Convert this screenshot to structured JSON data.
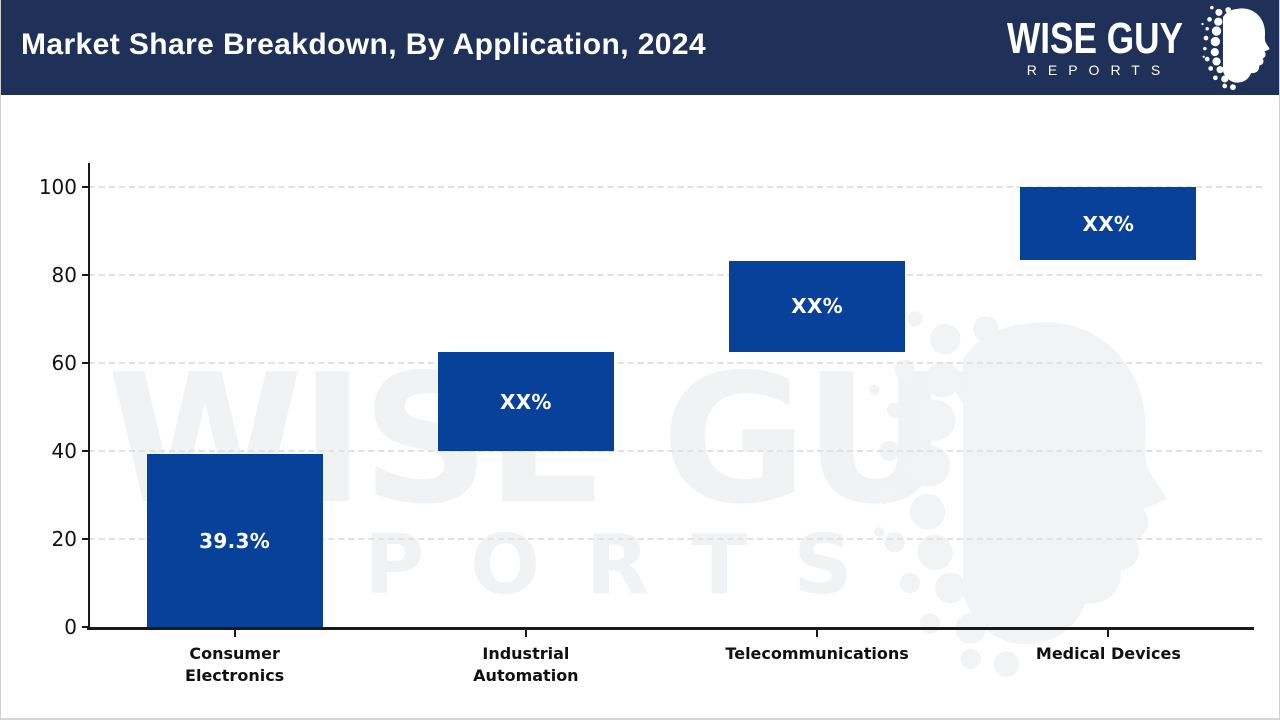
{
  "header": {
    "title": "Market Share Breakdown, By Application, 2024",
    "background_color": "#203159",
    "logo": {
      "wordmark": "WISE GUY",
      "subtext": "REPORTS"
    }
  },
  "watermark": {
    "line1": "WISE GUY",
    "line2": "REPORTS"
  },
  "chart_data": {
    "type": "bar",
    "subtype": "floating-waterfall",
    "title": "Market Share Breakdown, By Application, 2024",
    "categories": [
      "Consumer Electronics",
      "Industrial Automation",
      "Telecommunications",
      "Medical Devices"
    ],
    "category_lines": [
      [
        "Consumer",
        "Electronics"
      ],
      [
        "Industrial",
        "Automation"
      ],
      [
        "Telecommunications"
      ],
      [
        "Medical Devices"
      ]
    ],
    "segments": [
      {
        "category": "Consumer Electronics",
        "start": 0,
        "end": 39.3,
        "label": "39.3%"
      },
      {
        "category": "Industrial Automation",
        "start": 40,
        "end": 62.5,
        "label": "XX%"
      },
      {
        "category": "Telecommunications",
        "start": 62.5,
        "end": 83.2,
        "label": "XX%"
      },
      {
        "category": "Medical Devices",
        "start": 83.4,
        "end": 100,
        "label": "XX%"
      }
    ],
    "ylim": [
      0,
      105
    ],
    "yticks": [
      0,
      20,
      40,
      60,
      80,
      100
    ],
    "grid": "horizontal-dashed",
    "legend": false,
    "bar_color": "#074199",
    "bar_label_color": "#ffffff",
    "axis_color": "#1a1a1a",
    "gridline_color": "#e2e2e2",
    "xlabel": "",
    "ylabel": ""
  }
}
